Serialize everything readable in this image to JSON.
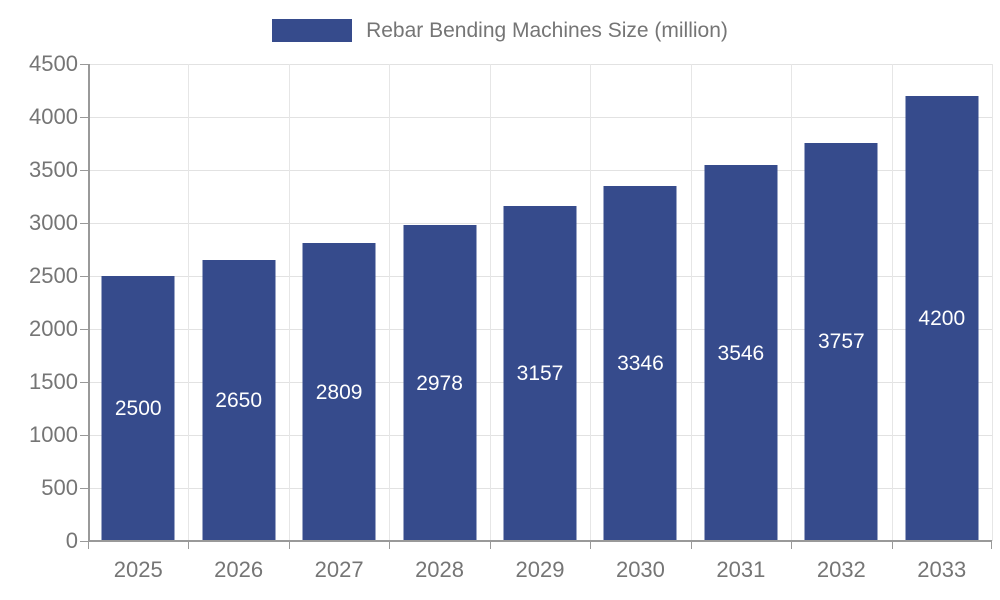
{
  "legend": {
    "label": "Rebar Bending Machines Size (million)",
    "swatch_color": "#364B8C"
  },
  "chart_data": {
    "type": "bar",
    "title": "",
    "categories": [
      "2025",
      "2026",
      "2027",
      "2028",
      "2029",
      "2030",
      "2031",
      "2032",
      "2033"
    ],
    "values": [
      2500,
      2650,
      2809,
      2978,
      3157,
      3346,
      3546,
      3757,
      4200
    ],
    "series": [
      {
        "name": "Rebar Bending Machines Size (million)",
        "values": [
          2500,
          2650,
          2809,
          2978,
          3157,
          3346,
          3546,
          3757,
          4200
        ]
      }
    ],
    "xlabel": "",
    "ylabel": "",
    "ylim": [
      0,
      4500
    ],
    "ytick_step": 500,
    "yticks": [
      0,
      500,
      1000,
      1500,
      2000,
      2500,
      3000,
      3500,
      4000,
      4500
    ],
    "grid": true,
    "legend_position": "top-center",
    "value_labels": "inside-center",
    "colors": {
      "bar": "#364B8C",
      "value_label": "#ffffff",
      "axis": "#999999",
      "grid_h": "#e2e2e2",
      "grid_v": "#e6e6e6",
      "tick_label": "#757575",
      "legend_text": "#757575",
      "background": "#ffffff"
    }
  }
}
